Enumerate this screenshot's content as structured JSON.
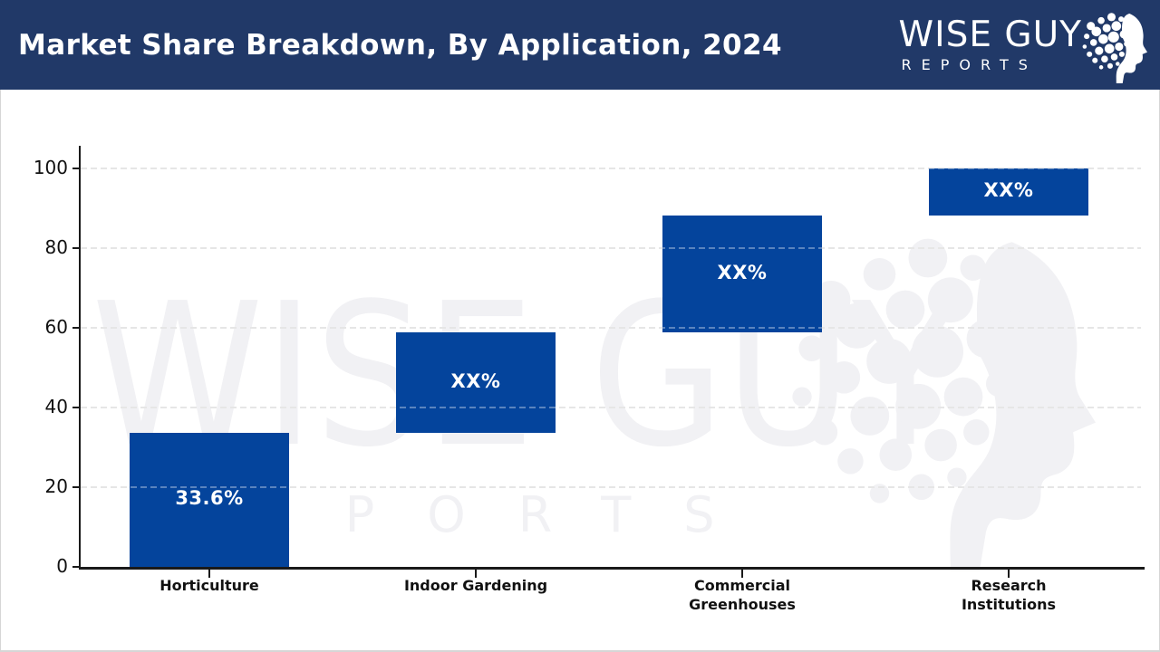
{
  "header": {
    "title": "Market Share Breakdown, By Application, 2024",
    "bg_color": "#213968",
    "logo": {
      "line1": "WISE GUY",
      "line2": "REPORTS"
    }
  },
  "watermark": {
    "line1": "WISE GUY",
    "line2": "REPORTS"
  },
  "chart_data": {
    "type": "bar",
    "subtype": "waterfall",
    "title": "Market Share Breakdown, By Application, 2024",
    "categories": [
      "Horticulture",
      "Indoor Gardening",
      "Commercial\nGreenhouses",
      "Research\nInstitutions"
    ],
    "segments": [
      {
        "category": "Horticulture",
        "start": 0,
        "end": 33.6,
        "label": "33.6%"
      },
      {
        "category": "Indoor Gardening",
        "start": 33.6,
        "end": 58.8,
        "label": "XX%"
      },
      {
        "category": "Commercial Greenhouses",
        "start": 58.8,
        "end": 88.2,
        "label": "XX%"
      },
      {
        "category": "Research Institutions",
        "start": 88.2,
        "end": 100,
        "label": "XX%"
      }
    ],
    "ylim": [
      0,
      100
    ],
    "yticks": [
      0,
      20,
      40,
      60,
      80,
      100
    ],
    "grid": "horizontal dashed",
    "legend": "none",
    "bar_color": "#04449c",
    "bar_label_color": "#ffffff"
  }
}
